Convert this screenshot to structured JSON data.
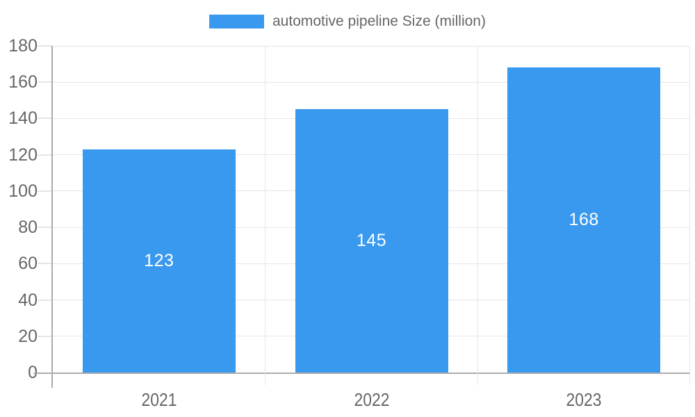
{
  "chart_data": {
    "type": "bar",
    "title": "",
    "legend_position": "top",
    "categories": [
      "2021",
      "2022",
      "2023"
    ],
    "series": [
      {
        "name": "automotive pipeline Size (million)",
        "values": [
          123,
          145,
          168
        ]
      }
    ],
    "bar_value_labels": [
      "123",
      "145",
      "168"
    ],
    "xlabel": "",
    "ylabel": "",
    "ylim": [
      0,
      180
    ],
    "yticks": [
      0,
      20,
      40,
      60,
      80,
      100,
      120,
      140,
      160,
      180
    ],
    "grid": true,
    "colors": {
      "bar": "#3999EE",
      "bar_value_label": "#FFFFFF",
      "axis_text": "#666666",
      "gridline": "#E5E5E5",
      "axis_line": "#ACACAC",
      "background": "#FFFFFF"
    }
  }
}
